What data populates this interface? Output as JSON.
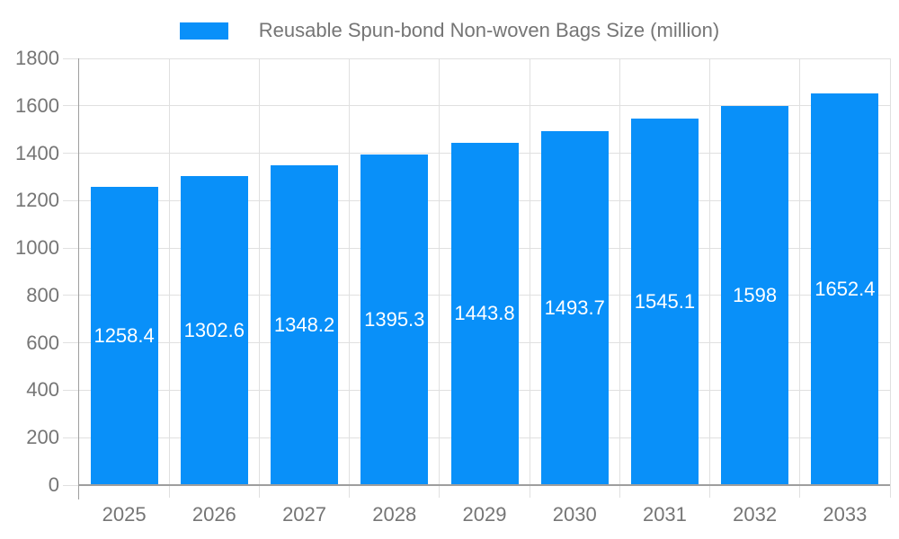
{
  "chart_data": {
    "type": "bar",
    "title": "Reusable Spun-bond Non-woven Bags Size (million)",
    "legend": {
      "position": "top",
      "items": [
        {
          "label": "Reusable Spun-bond Non-woven Bags Size (million)",
          "color": "#0990f9"
        }
      ]
    },
    "categories": [
      "2025",
      "2026",
      "2027",
      "2028",
      "2029",
      "2030",
      "2031",
      "2032",
      "2033"
    ],
    "series": [
      {
        "name": "Reusable Spun-bond Non-woven Bags Size (million)",
        "values": [
          1258.4,
          1302.6,
          1348.2,
          1395.3,
          1443.8,
          1493.7,
          1545.1,
          1598,
          1652.4
        ],
        "value_labels": [
          "1258.4",
          "1302.6",
          "1348.2",
          "1395.3",
          "1443.8",
          "1493.7",
          "1545.1",
          "1598",
          "1652.4"
        ]
      }
    ],
    "xlabel": "",
    "ylabel": "",
    "ylim": [
      0,
      1800
    ],
    "ytick_step": 200,
    "yticks": [
      0,
      200,
      400,
      600,
      800,
      1000,
      1200,
      1400,
      1600,
      1800
    ],
    "grid": true,
    "value_label_position": "inside-center",
    "colors": {
      "bar": "#0990f9",
      "value_label": "#ffffff",
      "axis_text": "#757575",
      "grid_line": "#e0e0e0",
      "axis_line": "#9e9e9e",
      "background": "#ffffff"
    }
  }
}
